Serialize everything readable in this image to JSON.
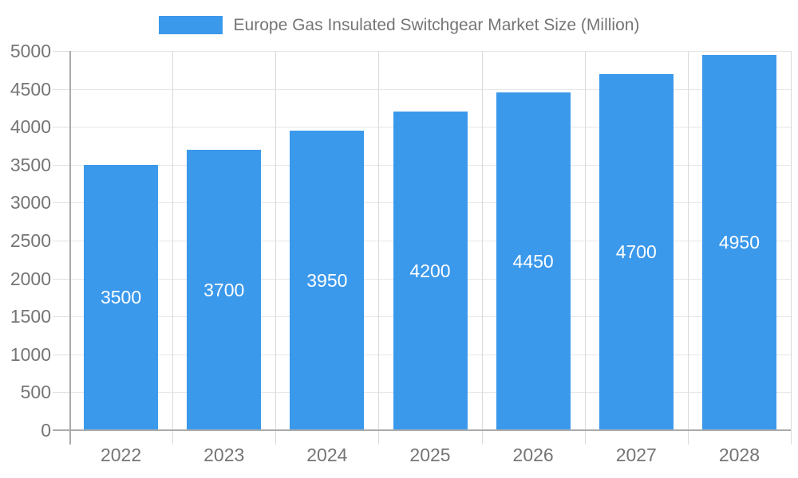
{
  "chart_data": {
    "type": "bar",
    "title": "Europe Gas Insulated Switchgear Market Size (Million)",
    "categories": [
      "2022",
      "2023",
      "2024",
      "2025",
      "2026",
      "2027",
      "2028"
    ],
    "series": [
      {
        "name": "Europe Gas Insulated Switchgear Market Size (Million)",
        "values": [
          3500,
          3700,
          3950,
          4200,
          4450,
          4700,
          4950
        ]
      }
    ],
    "xlabel": "",
    "ylabel": "",
    "ylim": [
      0,
      5000
    ],
    "yticks": [
      0,
      500,
      1000,
      1500,
      2000,
      2500,
      3000,
      3500,
      4000,
      4500,
      5000
    ],
    "grid": true,
    "legend_position": "top",
    "bar_labels_inside": true,
    "colors": {
      "bar": "#3B99EC",
      "bar_label": "#FFFFFF",
      "axis_text": "#757575",
      "grid_horizontal": "#E6E6E6",
      "grid_vertical": "#DADADA",
      "axis_line": "#ABABAB",
      "tick": "#E0E0E0",
      "background": "#FFFFFF"
    }
  }
}
